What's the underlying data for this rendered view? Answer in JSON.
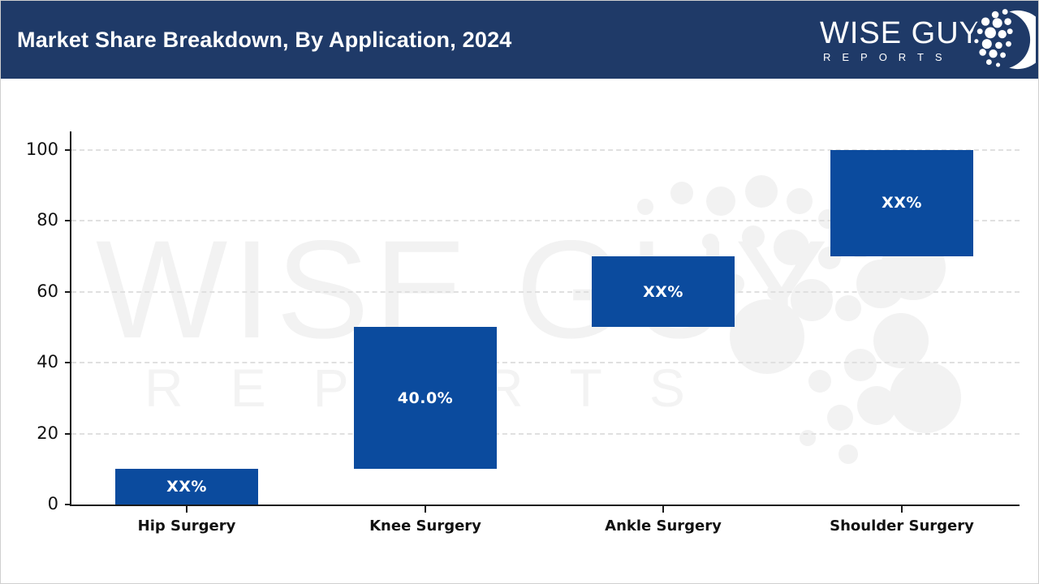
{
  "header": {
    "title": "Market Share Breakdown, By Application, 2024",
    "logo": {
      "line1": "WISE GUY",
      "line2": "REPORTS"
    }
  },
  "watermark": {
    "line1": "WISE GUY",
    "line2": "REPORTS"
  },
  "colors": {
    "header_bg": "#1f3a68",
    "bar": "#0b4b9e",
    "grid": "#e0e0e0",
    "axis": "#1a1a1a",
    "bar_label": "#ffffff",
    "watermark": "#f2f2f2"
  },
  "chart_data": {
    "type": "bar",
    "subtype": "waterfall",
    "title": "Market Share Breakdown, By Application, 2024",
    "categories": [
      "Hip Surgery",
      "Knee Surgery",
      "Ankle Surgery",
      "Shoulder Surgery"
    ],
    "segments": [
      {
        "category": "Hip Surgery",
        "start": 0,
        "end": 10,
        "height": 10,
        "label": "XX%"
      },
      {
        "category": "Knee Surgery",
        "start": 10,
        "end": 50,
        "height": 40,
        "label": "40.0%"
      },
      {
        "category": "Ankle Surgery",
        "start": 50,
        "end": 70,
        "height": 20,
        "label": "XX%"
      },
      {
        "category": "Shoulder Surgery",
        "start": 70,
        "end": 100,
        "height": 30,
        "label": "XX%"
      }
    ],
    "xlabel": "",
    "ylabel": "",
    "ylim": [
      0,
      100
    ],
    "yticks": [
      0,
      20,
      40,
      60,
      80,
      100
    ],
    "grid": "horizontal dashed",
    "legend": "none",
    "bar_color": "#0b4b9e",
    "label_color": "#ffffff"
  }
}
